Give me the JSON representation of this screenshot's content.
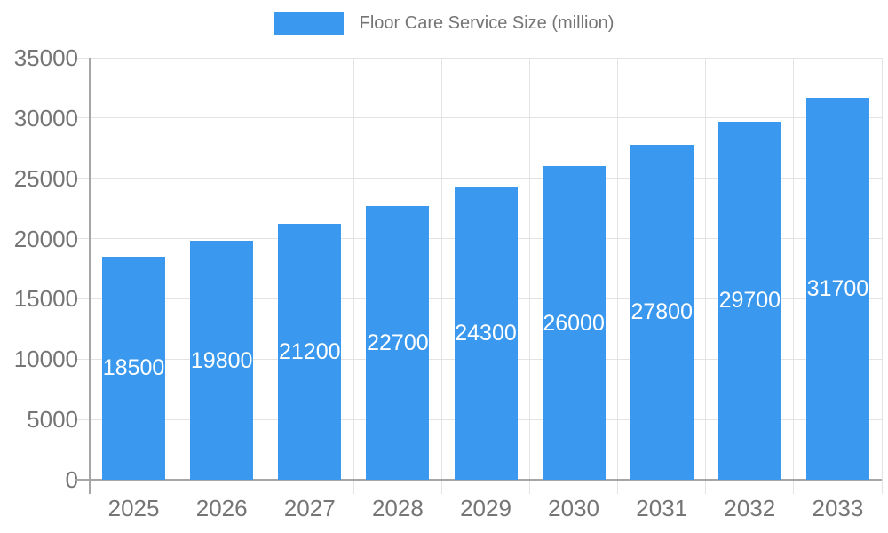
{
  "legend": {
    "label": "Floor Care Service Size (million)",
    "swatch_color": "#3A99EE"
  },
  "chart_data": {
    "type": "bar",
    "title": "",
    "xlabel": "",
    "ylabel": "",
    "categories": [
      "2025",
      "2026",
      "2027",
      "2028",
      "2029",
      "2030",
      "2031",
      "2032",
      "2033"
    ],
    "series": [
      {
        "name": "Floor Care Service Size (million)",
        "values": [
          18500,
          19800,
          21200,
          22700,
          24300,
          26000,
          27800,
          29700,
          31700
        ]
      }
    ],
    "data_labels": [
      "18500",
      "19800",
      "21200",
      "22700",
      "24300",
      "26000",
      "27800",
      "29700",
      "31700"
    ],
    "ylim": [
      0,
      35000
    ],
    "yticks": [
      0,
      5000,
      10000,
      15000,
      20000,
      25000,
      30000,
      35000
    ],
    "grid": true,
    "legend_position": "top",
    "bar_color": "#3A99EE",
    "bar_label_color": "#ffffff",
    "grid_color": "#e3e3e3",
    "axis_color": "#a6a6a6",
    "tick_label_color": "#757575",
    "background_color": "#ffffff"
  }
}
